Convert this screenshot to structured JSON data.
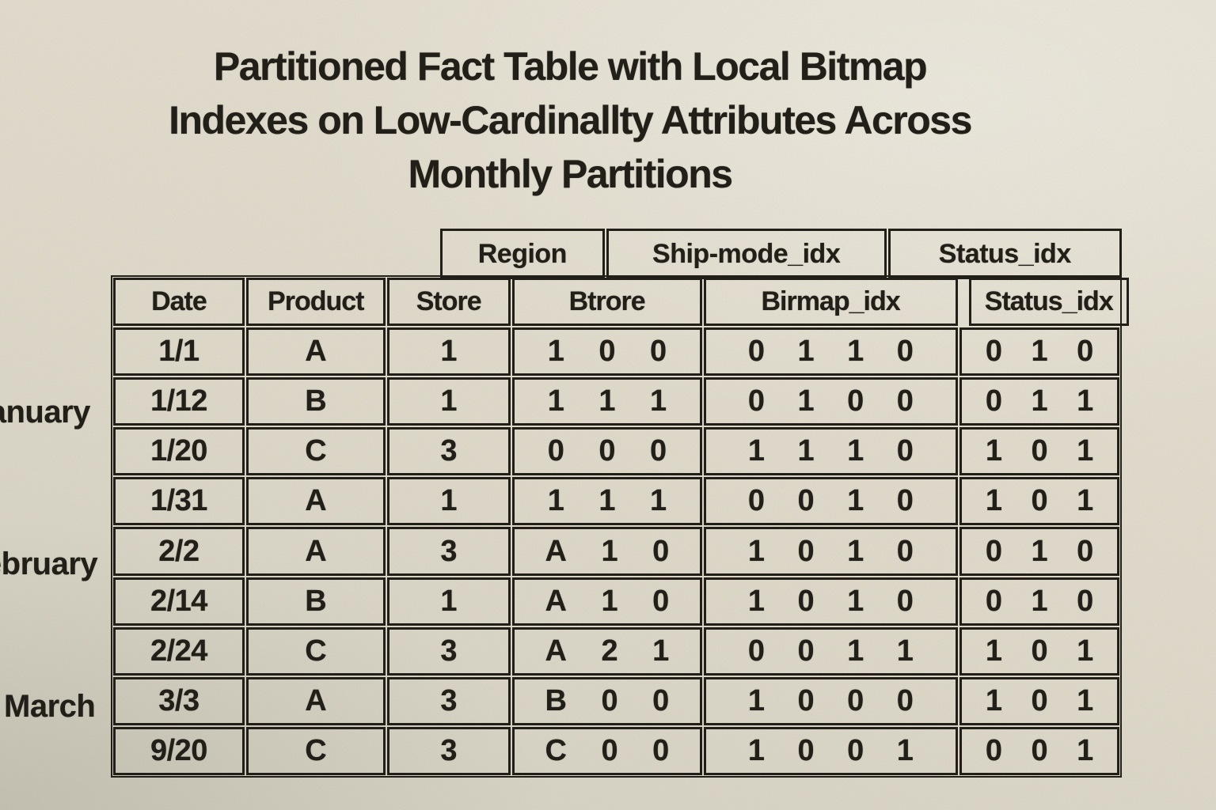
{
  "figure": {
    "title_lines": [
      "Partitioned Fact Table with Local Bitmap",
      "Indexes on Low-Cardinallty Attributes Across",
      "Monthly Partitions"
    ]
  },
  "index_header": {
    "cells": [
      "Region",
      "Ship-mode_idx",
      "Status_idx"
    ]
  },
  "partition_labels": {
    "months": [
      "January",
      "February",
      "March"
    ]
  },
  "table": {
    "columns": [
      "Date",
      "Product",
      "Store",
      "Btrore",
      "Birmap_idx",
      "Status_idx"
    ],
    "rows": [
      {
        "date": "1/1",
        "product": "A",
        "store": "1",
        "btrore": [
          "1",
          "0",
          "0"
        ],
        "birmap_idx": [
          "0",
          "1",
          "1",
          "0"
        ],
        "status_idx": [
          "0",
          "1",
          "0"
        ]
      },
      {
        "date": "1/12",
        "product": "B",
        "store": "1",
        "btrore": [
          "1",
          "1",
          "1"
        ],
        "birmap_idx": [
          "0",
          "1",
          "0",
          "0"
        ],
        "status_idx": [
          "0",
          "1",
          "1"
        ]
      },
      {
        "date": "1/20",
        "product": "C",
        "store": "3",
        "btrore": [
          "0",
          "0",
          "0"
        ],
        "birmap_idx": [
          "1",
          "1",
          "1",
          "0"
        ],
        "status_idx": [
          "1",
          "0",
          "1"
        ]
      },
      {
        "date": "1/31",
        "product": "A",
        "store": "1",
        "btrore": [
          "1",
          "1",
          "1"
        ],
        "birmap_idx": [
          "0",
          "0",
          "1",
          "0"
        ],
        "status_idx": [
          "1",
          "0",
          "1"
        ]
      },
      {
        "date": "2/2",
        "product": "A",
        "store": "3",
        "btrore": [
          "A",
          "1",
          "0"
        ],
        "birmap_idx": [
          "1",
          "0",
          "1",
          "0"
        ],
        "status_idx": [
          "0",
          "1",
          "0"
        ]
      },
      {
        "date": "2/14",
        "product": "B",
        "store": "1",
        "btrore": [
          "A",
          "1",
          "0"
        ],
        "birmap_idx": [
          "1",
          "0",
          "1",
          "0"
        ],
        "status_idx": [
          "0",
          "1",
          "0"
        ]
      },
      {
        "date": "2/24",
        "product": "C",
        "store": "3",
        "btrore": [
          "A",
          "2",
          "1"
        ],
        "birmap_idx": [
          "0",
          "0",
          "1",
          "1"
        ],
        "status_idx": [
          "1",
          "0",
          "1"
        ]
      },
      {
        "date": "3/3",
        "product": "A",
        "store": "3",
        "btrore": [
          "B",
          "0",
          "0"
        ],
        "birmap_idx": [
          "1",
          "0",
          "0",
          "0"
        ],
        "status_idx": [
          "1",
          "0",
          "1"
        ]
      },
      {
        "date": "9/20",
        "product": "C",
        "store": "3",
        "btrore": [
          "C",
          "0",
          "0"
        ],
        "birmap_idx": [
          "1",
          "0",
          "0",
          "1"
        ],
        "status_idx": [
          "0",
          "0",
          "1"
        ]
      }
    ]
  },
  "colors": {
    "paper": "#e2ddcd",
    "ink": "#221e18"
  }
}
